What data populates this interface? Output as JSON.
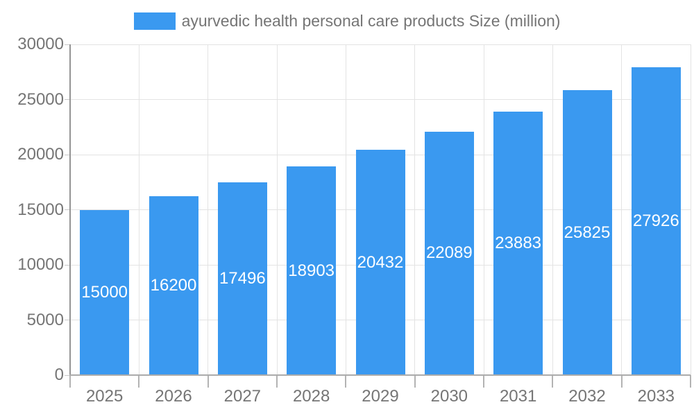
{
  "page": {
    "background": "#ffffff"
  },
  "chart_data": {
    "type": "bar",
    "title": "ayurvedic health personal care products Size (million)",
    "categories": [
      "2025",
      "2026",
      "2027",
      "2028",
      "2029",
      "2030",
      "2031",
      "2032",
      "2033"
    ],
    "values": [
      15000,
      16200,
      17496,
      18903,
      20432,
      22089,
      23883,
      25825,
      27926
    ],
    "xlabel": "",
    "ylabel": "",
    "ylim": [
      0,
      30000
    ],
    "y_ticks": [
      0,
      5000,
      10000,
      15000,
      20000,
      25000,
      30000
    ],
    "grid": true,
    "legend_position": "top",
    "colors": {
      "bar": "#3a99f0",
      "grid": "#e3e3e3",
      "y_axis_line": "#949494",
      "x_axis_line": "#ababab",
      "y_tick": "#c9c9c9",
      "x_tick": "#b3b3b3",
      "text": "#757575",
      "bar_label": "#ffffff"
    }
  }
}
